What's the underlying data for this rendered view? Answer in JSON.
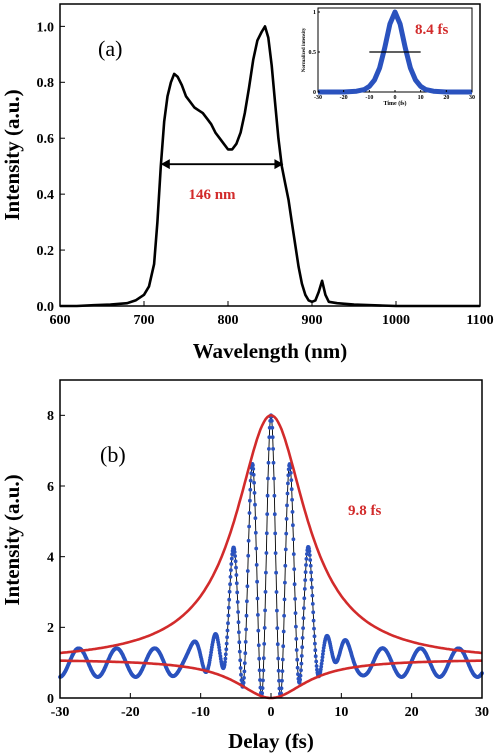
{
  "chart_data": [
    {
      "panel_label": "(a)",
      "type": "line",
      "xlabel": "Wavelength (nm)",
      "ylabel": "Intensity (a.u.)",
      "xlim": [
        600,
        1100
      ],
      "ylim": [
        0,
        1.08
      ],
      "xticks": [
        600,
        700,
        800,
        900,
        1000,
        1100
      ],
      "yticks": [
        0.0,
        0.2,
        0.4,
        0.6,
        0.8,
        1.0
      ],
      "xtick_labels": [
        "600",
        "700",
        "800",
        "900",
        "1000",
        "1100"
      ],
      "ytick_labels": [
        "0.0",
        "0.2",
        "0.4",
        "0.6",
        "0.8",
        "1.0"
      ],
      "series": [
        {
          "color": "#000000",
          "x": [
            600,
            620,
            640,
            660,
            680,
            690,
            700,
            706,
            712,
            716,
            720,
            724,
            728,
            732,
            736,
            740,
            745,
            750,
            755,
            760,
            765,
            770,
            775,
            780,
            785,
            790,
            795,
            800,
            805,
            810,
            815,
            820,
            825,
            830,
            835,
            840,
            844,
            848,
            852,
            856,
            860,
            864,
            868,
            872,
            876,
            880,
            884,
            888,
            892,
            896,
            900,
            904,
            908,
            912,
            916,
            920,
            930,
            950,
            1000,
            1050,
            1100
          ],
          "y": [
            0.0,
            0.0,
            0.003,
            0.005,
            0.01,
            0.02,
            0.04,
            0.07,
            0.15,
            0.3,
            0.5,
            0.66,
            0.75,
            0.8,
            0.83,
            0.82,
            0.79,
            0.75,
            0.73,
            0.71,
            0.7,
            0.69,
            0.67,
            0.65,
            0.62,
            0.6,
            0.58,
            0.56,
            0.56,
            0.58,
            0.62,
            0.69,
            0.78,
            0.88,
            0.95,
            0.98,
            1.0,
            0.96,
            0.86,
            0.73,
            0.6,
            0.5,
            0.44,
            0.38,
            0.3,
            0.22,
            0.14,
            0.08,
            0.04,
            0.02,
            0.015,
            0.02,
            0.05,
            0.09,
            0.04,
            0.015,
            0.01,
            0.005,
            0.0,
            0.0,
            0.0
          ]
        }
      ],
      "fwhm_annotation": {
        "text": "146 nm",
        "from": 720,
        "to": 866,
        "y": 0.5,
        "color": "#d22b2b"
      },
      "inset": {
        "type": "line",
        "xlabel": "Time (fs)",
        "ylabel": "Normalized intensity",
        "xlim": [
          -30,
          30
        ],
        "ylim": [
          0,
          1.05
        ],
        "xticks": [
          -30,
          -20,
          -10,
          0,
          10,
          20,
          30
        ],
        "xtick_labels": [
          "-30",
          "-20",
          "-10",
          "0",
          "10",
          "20",
          "30"
        ],
        "yticks": [
          0,
          0.5,
          1
        ],
        "ytick_labels": [
          "0",
          "0.5",
          "1"
        ],
        "series": [
          {
            "color": "#2a52be",
            "x": [
              -30,
              -20,
              -15,
              -12,
              -10,
              -8,
              -6,
              -4,
              -2,
              0,
              2,
              4,
              6,
              8,
              10,
              12,
              15,
              20,
              30
            ],
            "y": [
              0.0,
              0.0,
              0.01,
              0.03,
              0.07,
              0.15,
              0.3,
              0.55,
              0.85,
              1.0,
              0.85,
              0.55,
              0.3,
              0.15,
              0.07,
              0.03,
              0.01,
              0.0,
              0.0
            ]
          }
        ],
        "fwhm_annotation": {
          "text": "8.4 fs",
          "from": -4.2,
          "to": 4.2,
          "y": 0.5,
          "line_from": -10,
          "line_to": 10,
          "color": "#d22b2b"
        }
      }
    },
    {
      "panel_label": "(b)",
      "type": "line",
      "xlabel": "Delay (fs)",
      "ylabel": "Intensity (a.u.)",
      "xlim": [
        -30,
        30
      ],
      "ylim": [
        0,
        9
      ],
      "xticks": [
        -30,
        -20,
        -10,
        0,
        10,
        20,
        30
      ],
      "xtick_labels": [
        "-30",
        "-20",
        "-10",
        "0",
        "10",
        "20",
        "30"
      ],
      "yticks": [
        0,
        2,
        4,
        6,
        8
      ],
      "ytick_labels": [
        "0",
        "2",
        "4",
        "6",
        "8"
      ],
      "autocorrelation": {
        "color": "#2a52be",
        "line_color": "#000000",
        "baseline": 1.0,
        "peak": 8.0,
        "fringe_period_fs": 2.7,
        "envelope_fwhm_fs": 9.8
      },
      "envelope": {
        "color": "#d22b2b",
        "upper_peak": 8.0,
        "upper_baseline": 1.0,
        "lower_minimum": 0.0,
        "lower_edge": 1.1
      },
      "annotation": {
        "text": "9.8 fs",
        "color": "#d22b2b"
      }
    }
  ]
}
